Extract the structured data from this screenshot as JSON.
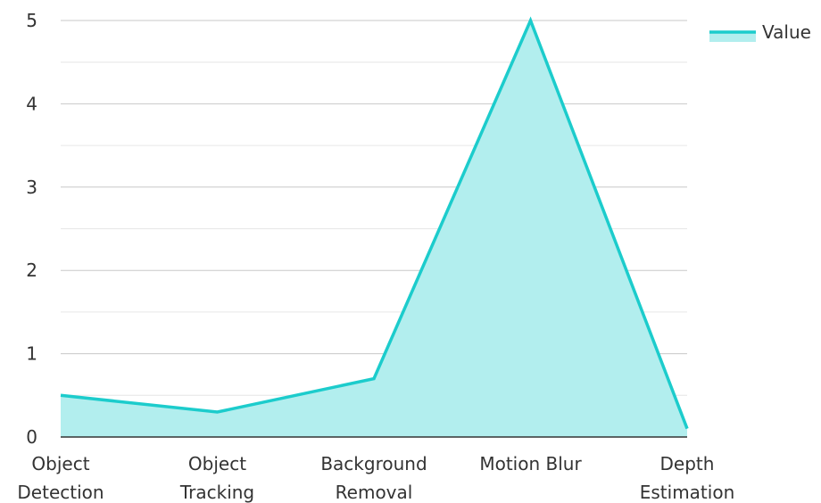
{
  "chart_data": {
    "type": "area",
    "title": "",
    "xlabel": "",
    "ylabel": "",
    "categories": [
      [
        "Object",
        "Detection"
      ],
      [
        "Object",
        "Tracking"
      ],
      [
        "Background",
        "Removal"
      ],
      [
        "Motion Blur"
      ],
      [
        "Depth",
        "Estimation"
      ]
    ],
    "series": [
      {
        "name": "Value",
        "values": [
          0.5,
          0.3,
          0.7,
          5,
          0.1
        ]
      }
    ],
    "ylim": [
      0,
      5
    ],
    "yticks": [
      0,
      1,
      2,
      3,
      4,
      5
    ],
    "grid": true,
    "legend_position": "top-right",
    "colors": {
      "line": "#1ccccc",
      "fill": "#b2eeee",
      "grid": "#cccccc",
      "axis": "#333333"
    }
  }
}
